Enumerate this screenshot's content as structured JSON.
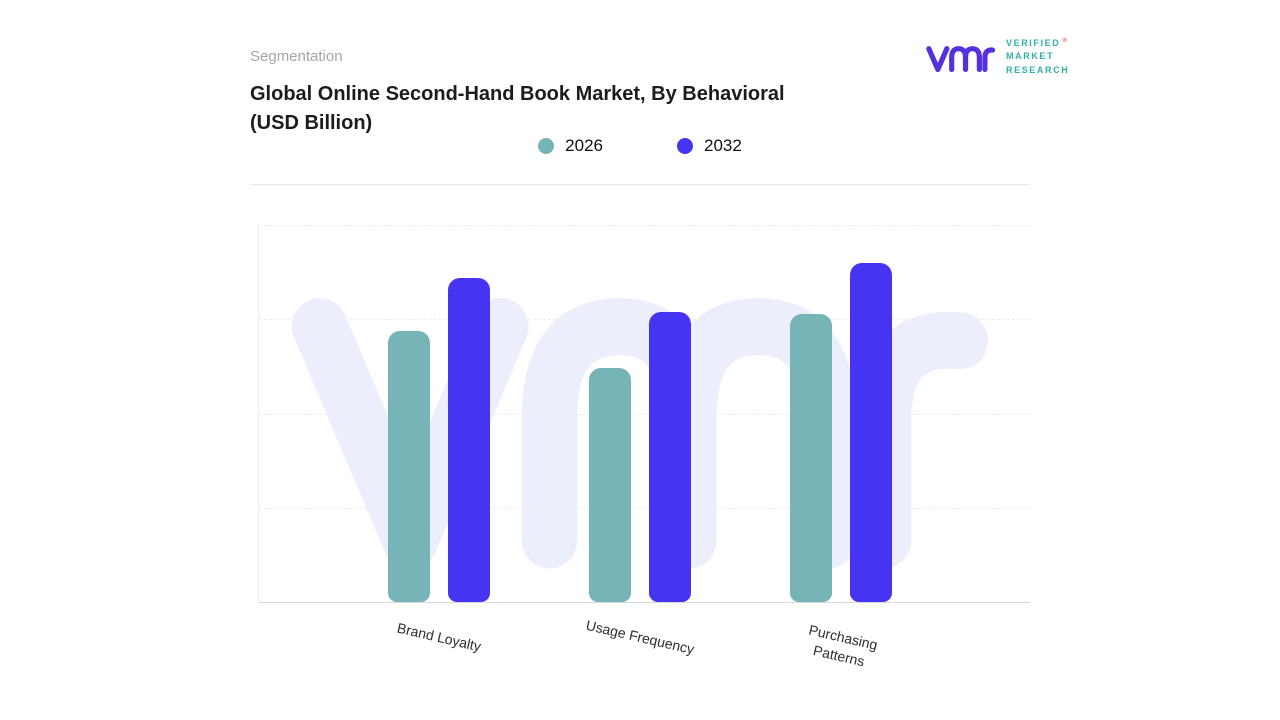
{
  "header": {
    "eyebrow": "Segmentation",
    "title_line1": "Global Online Second-Hand Book Market, By Behavioral",
    "title_line2": "(USD Billion)"
  },
  "logo": {
    "monogram": "vmr-monogram",
    "lines": [
      "VERIFIED",
      "MARKET",
      "RESEARCH"
    ],
    "registered_mark": "®"
  },
  "chart_data": {
    "type": "bar",
    "title": "Global Online Second-Hand Book Market, By Behavioral (USD Billion)",
    "unit": "USD Billion",
    "categories": [
      "Brand Loyalty",
      "Usage Frequency",
      "Purchasing Patterns"
    ],
    "series": [
      {
        "name": "2026",
        "color": "#76b4b7",
        "values": [
          7.2,
          6.2,
          7.65
        ]
      },
      {
        "name": "2032",
        "color": "#4734f2",
        "values": [
          8.6,
          7.7,
          9.0
        ]
      }
    ],
    "xlabel": "",
    "ylabel": "",
    "ylim": [
      0,
      10
    ],
    "value_axis_labels": false,
    "grid": "horizontal-dashed",
    "legend_position": "top-center",
    "watermark": "vm monogram"
  },
  "colors": {
    "series_2026": "#76b4b7",
    "series_2032": "#4734f2",
    "watermark": "#eceefb",
    "brand_purple": "#5430df",
    "brand_teal": "#2fb0a8",
    "registered": "#e0584b",
    "divider": "#e9e9e9"
  }
}
